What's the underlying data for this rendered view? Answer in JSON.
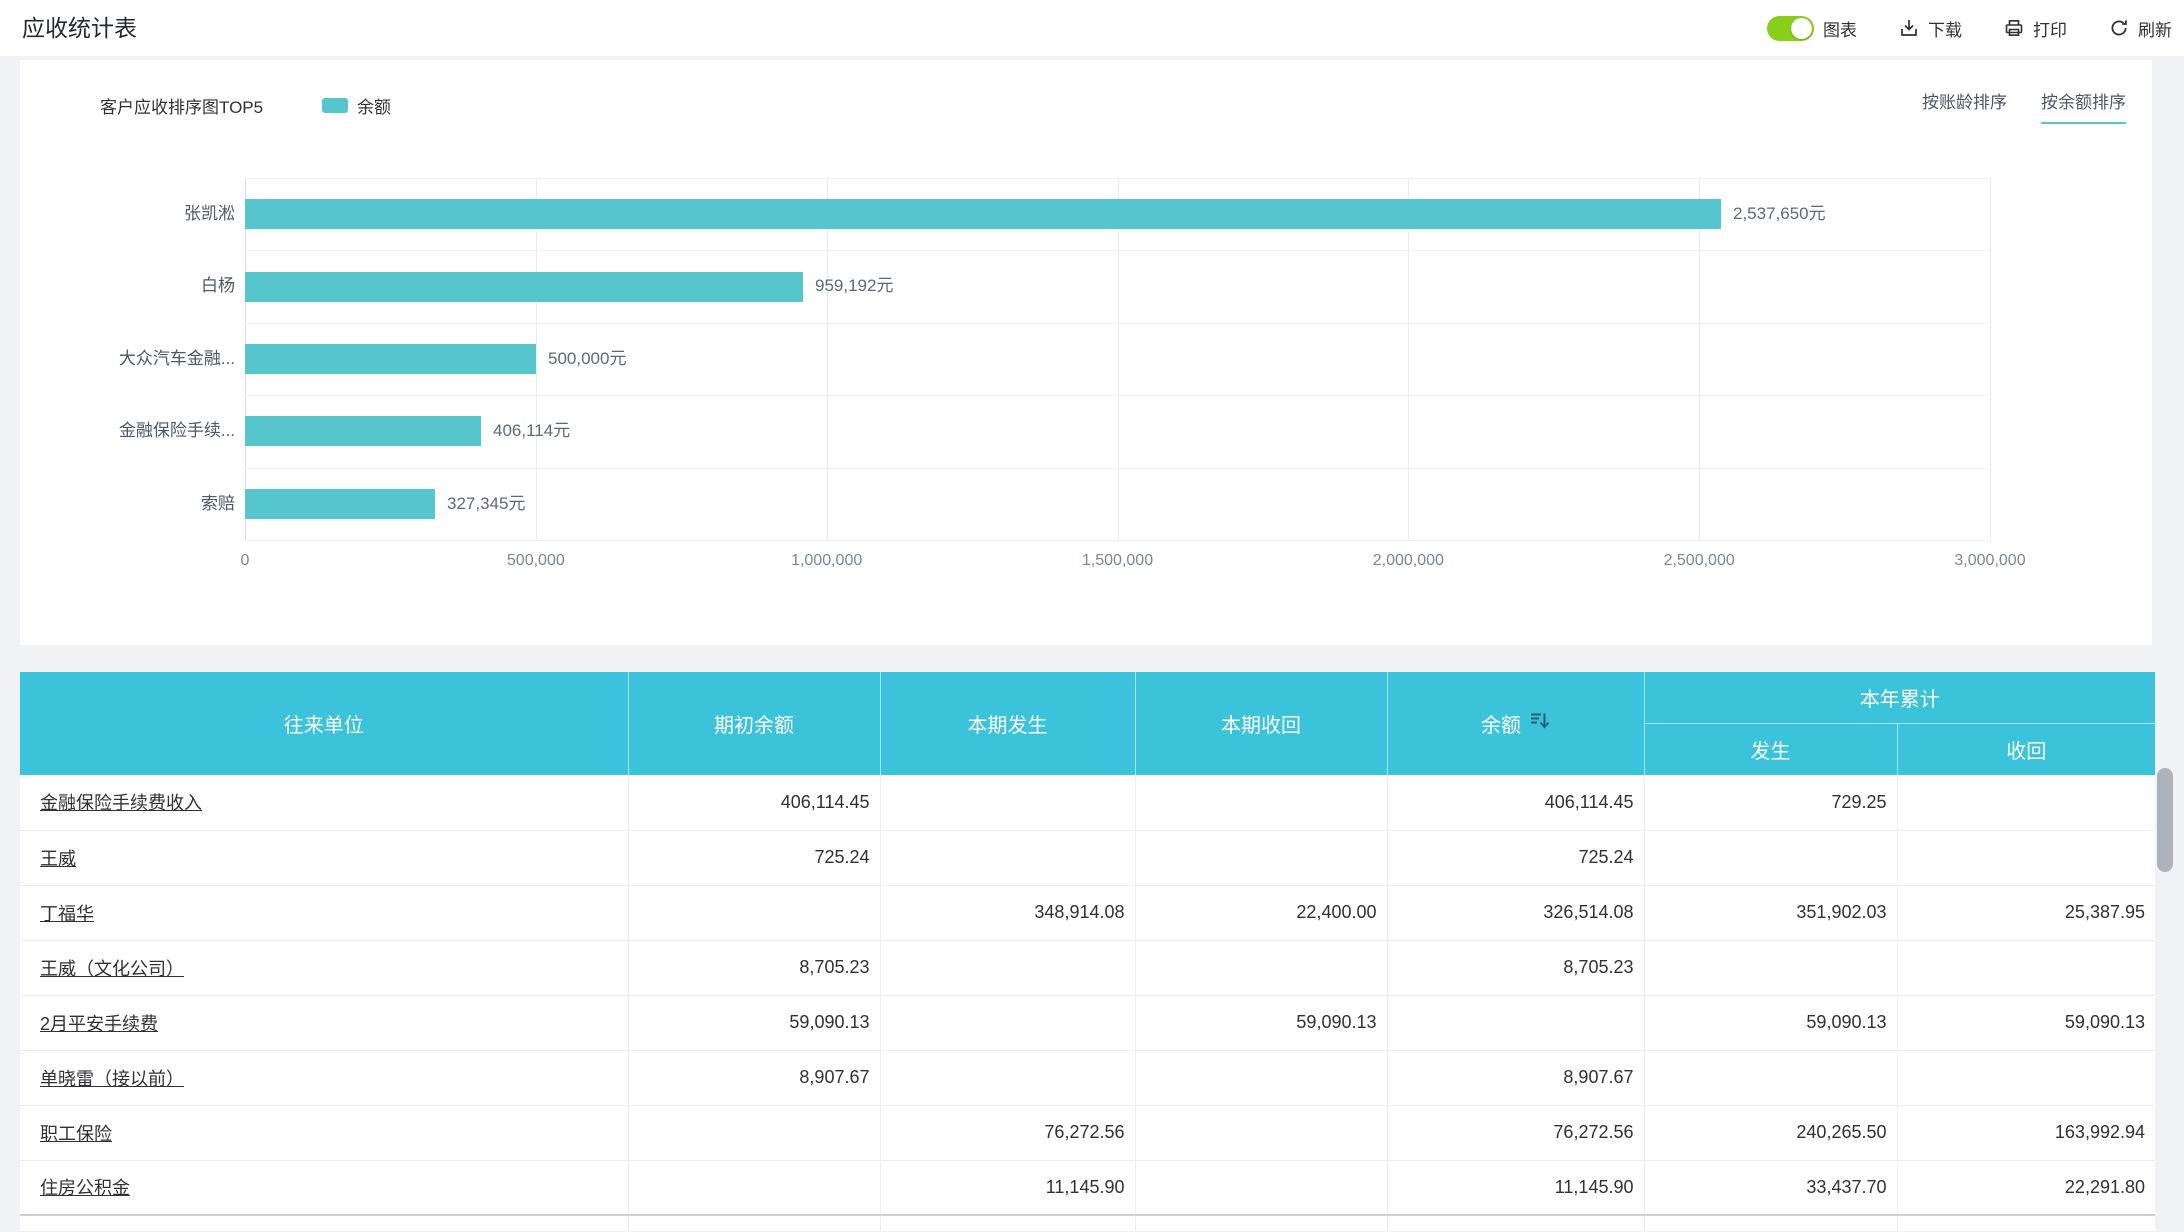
{
  "page": {
    "title": "应收统计表"
  },
  "topbar": {
    "chart_toggle": {
      "label": "图表",
      "on": true,
      "on_color": "#89ce1b"
    },
    "actions": {
      "download": "下载",
      "print": "打印",
      "refresh": "刷新"
    }
  },
  "chart_panel": {
    "title": "客户应收排序图TOP5",
    "legend": {
      "label": "余额",
      "color": "#57c5ce"
    },
    "sort_tabs": [
      {
        "label": "按账龄排序",
        "active": false
      },
      {
        "label": "按余额排序",
        "active": true
      }
    ]
  },
  "chart_data": {
    "type": "bar",
    "orientation": "horizontal",
    "title": "客户应收排序图TOP5",
    "series_name": "余额",
    "categories": [
      "张凯淞",
      "白杨",
      "大众汽车金融...",
      "金融保险手续...",
      "索赔"
    ],
    "values": [
      2537650,
      959192,
      500000,
      406114,
      327345
    ],
    "value_labels": [
      "2,537,650元",
      "959,192元",
      "500,000元",
      "406,114元",
      "327,345元"
    ],
    "xlim": [
      0,
      3000000
    ],
    "x_tick_labels": [
      "0",
      "500,000",
      "1,000,000",
      "1,500,000",
      "2,000,000",
      "2,500,000",
      "3,000,000"
    ],
    "bar_color": "#57c5ce",
    "grid": true,
    "legend_position": "top-left"
  },
  "table": {
    "header": {
      "col_unit": "往来单位",
      "col_opening": "期初余额",
      "col_incurred": "本期发生",
      "col_recovered": "本期收回",
      "col_balance": "余额",
      "col_ytd_group": "本年累计",
      "col_ytd_incurred": "发生",
      "col_ytd_recovered": "收回",
      "sorted_column": "余额",
      "sort_direction": "descending"
    },
    "rows": [
      {
        "name": "金融保险手续费收入",
        "opening": "406,114.45",
        "incurred": "",
        "recovered": "",
        "balance": "406,114.45",
        "ytd_incurred": "729.25",
        "ytd_recovered": ""
      },
      {
        "name": "王威",
        "opening": "725.24",
        "incurred": "",
        "recovered": "",
        "balance": "725.24",
        "ytd_incurred": "",
        "ytd_recovered": ""
      },
      {
        "name": "丁福华",
        "opening": "",
        "incurred": "348,914.08",
        "recovered": "22,400.00",
        "balance": "326,514.08",
        "ytd_incurred": "351,902.03",
        "ytd_recovered": "25,387.95"
      },
      {
        "name": "王威（文化公司）",
        "opening": "8,705.23",
        "incurred": "",
        "recovered": "",
        "balance": "8,705.23",
        "ytd_incurred": "",
        "ytd_recovered": ""
      },
      {
        "name": "2月平安手续费",
        "opening": "59,090.13",
        "incurred": "",
        "recovered": "59,090.13",
        "balance": "",
        "ytd_incurred": "59,090.13",
        "ytd_recovered": "59,090.13"
      },
      {
        "name": "单晓雷（接以前）",
        "opening": "8,907.67",
        "incurred": "",
        "recovered": "",
        "balance": "8,907.67",
        "ytd_incurred": "",
        "ytd_recovered": ""
      },
      {
        "name": "职工保险",
        "opening": "",
        "incurred": "76,272.56",
        "recovered": "",
        "balance": "76,272.56",
        "ytd_incurred": "240,265.50",
        "ytd_recovered": "163,992.94"
      },
      {
        "name": "住房公积金",
        "opening": "",
        "incurred": "11,145.90",
        "recovered": "",
        "balance": "11,145.90",
        "ytd_incurred": "33,437.70",
        "ytd_recovered": "22,291.80"
      }
    ]
  },
  "colors": {
    "page_bg": "#f0f2f5",
    "bar": "#57c5ce",
    "table_header_bg": "#3bc3dc",
    "accent_underline": "#57c5ce",
    "toggle_on": "#89ce1b"
  }
}
